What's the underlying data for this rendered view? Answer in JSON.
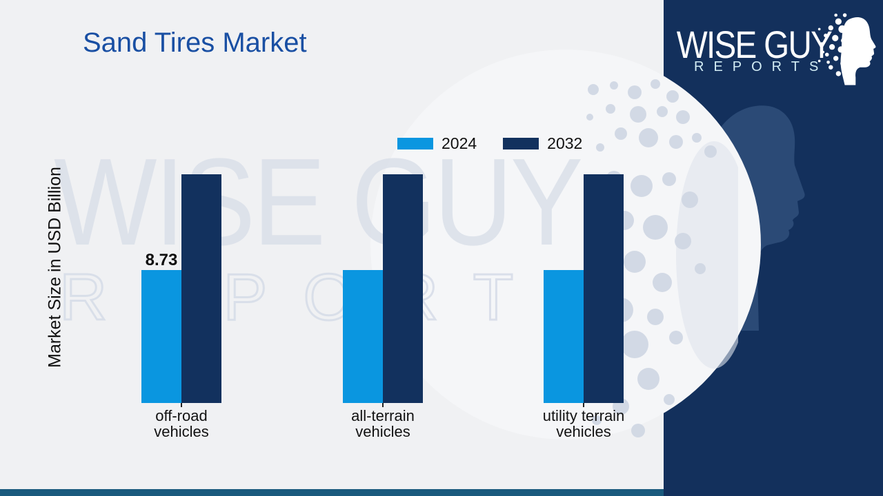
{
  "header": {
    "title": "Sand Tires Market",
    "title_color": "#194fa3"
  },
  "axis": {
    "ylabel": "Market Size in USD Billion"
  },
  "watermark": {
    "line1": "WISE GUY",
    "line2": "REPORTS"
  },
  "brand": {
    "line1": "WISE GUY",
    "line2": "REPORTS",
    "panel_color": "#13305c",
    "strip_color": "#1a5a7d",
    "face_icon": "dissolving-face-profile"
  },
  "colors": {
    "background": "#f0f1f3",
    "series_2024": "#0a96e0",
    "series_2032": "#12315e",
    "title": "#194fa3"
  },
  "chart_data": {
    "type": "bar",
    "title": "Sand Tires Market",
    "xlabel": "",
    "ylabel": "Market Size in USD Billion",
    "units": "USD Billion",
    "grid": false,
    "legend_position": "top",
    "ylim": [
      0,
      16
    ],
    "categories": [
      "off-road vehicles",
      "all-terrain vehicles",
      "utility terrain vehicles"
    ],
    "series": [
      {
        "name": "2024",
        "color": "#0a96e0",
        "values": [
          8.73,
          8.73,
          8.73
        ]
      },
      {
        "name": "2032",
        "color": "#12315e",
        "values": [
          15.0,
          15.0,
          15.0
        ],
        "note": "values estimated from bar heights; not labeled in image"
      }
    ],
    "bar_value_labels": [
      {
        "series_index": 0,
        "category_index": 0,
        "text": "8.73"
      }
    ]
  }
}
